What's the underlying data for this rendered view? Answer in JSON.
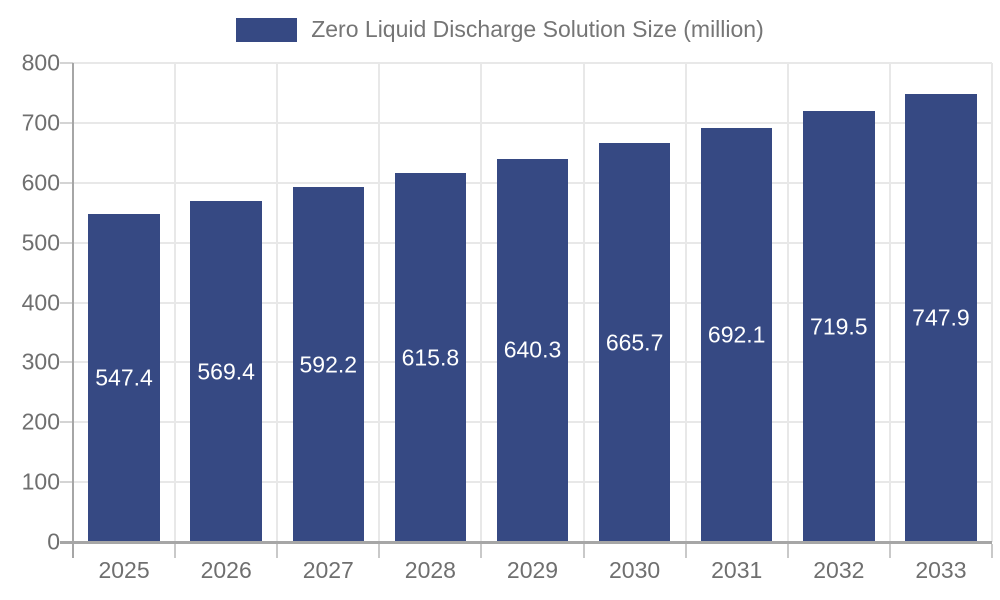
{
  "legend": {
    "label": "Zero Liquid Discharge Solution Size (million)",
    "swatch_color": "#364983"
  },
  "chart_data": {
    "type": "bar",
    "title": "Zero Liquid Discharge Solution Size (million)",
    "series_name": "Zero Liquid Discharge Solution Size (million)",
    "categories": [
      "2025",
      "2026",
      "2027",
      "2028",
      "2029",
      "2030",
      "2031",
      "2032",
      "2033"
    ],
    "values": [
      547.4,
      569.4,
      592.2,
      615.8,
      640.3,
      665.7,
      692.1,
      719.5,
      747.9
    ],
    "xlabel": "",
    "ylabel": "",
    "ylim": [
      0,
      800
    ],
    "yticks": [
      0,
      100,
      200,
      300,
      400,
      500,
      600,
      700,
      800
    ],
    "grid": true,
    "legend_position": "top",
    "colors": {
      "bar": "#364983",
      "value_label": "#ffffff",
      "axis_text": "#6f6f6f",
      "legend_text": "#757575",
      "gridline": "#e8e8e8",
      "axis_line": "#a6a6a6"
    }
  }
}
